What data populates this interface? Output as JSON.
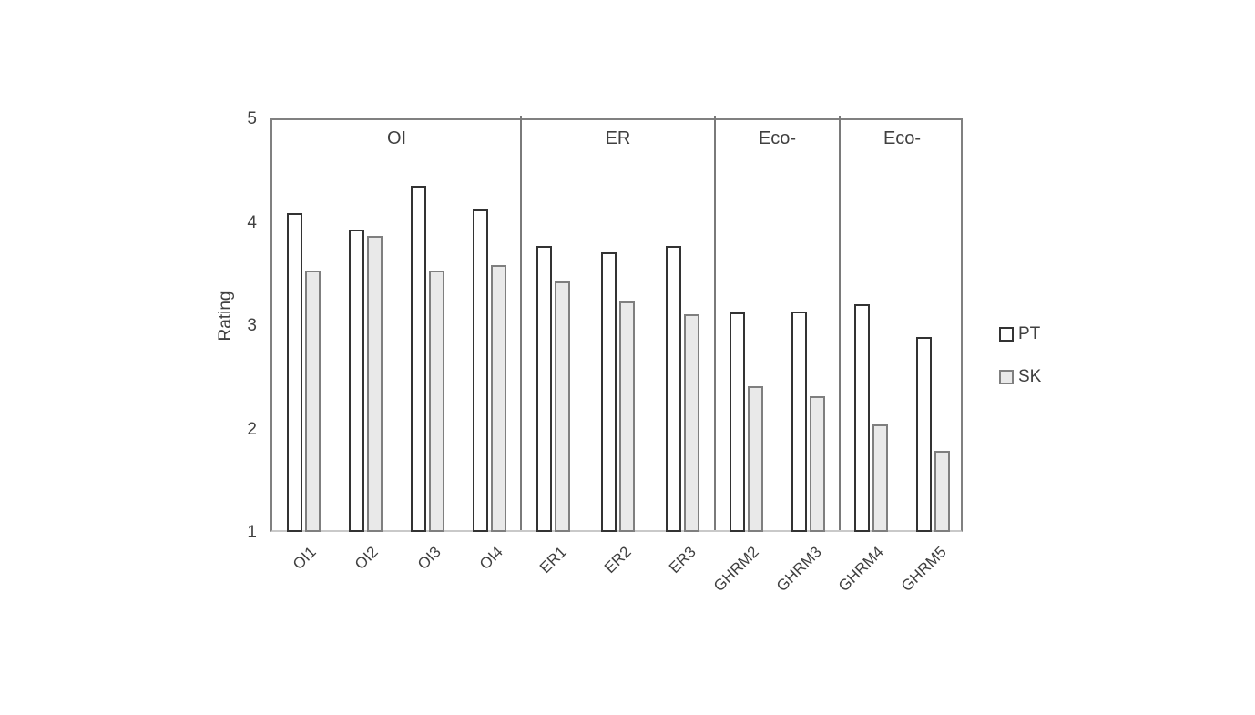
{
  "chart_data": {
    "type": "bar",
    "title": "",
    "xlabel": "",
    "ylabel": "Rating",
    "ylim": [
      1,
      5
    ],
    "yticks": [
      5,
      4,
      3,
      2,
      1
    ],
    "grid": false,
    "legend_position": "right",
    "groups": [
      {
        "label": "OI",
        "categories": [
          "OI1",
          "OI2",
          "OI3",
          "OI4"
        ]
      },
      {
        "label": "ER",
        "categories": [
          "ER1",
          "ER2",
          "ER3"
        ]
      },
      {
        "label": "Eco-",
        "categories": [
          "GHRM2",
          "GHRM3"
        ]
      },
      {
        "label": "Eco-",
        "categories": [
          "GHRM4",
          "GHRM5"
        ]
      }
    ],
    "categories": [
      "OI1",
      "OI2",
      "OI3",
      "OI4",
      "ER1",
      "ER2",
      "ER3",
      "GHRM2",
      "GHRM3",
      "GHRM4",
      "GHRM5"
    ],
    "series": [
      {
        "name": "PT",
        "fill": "#ffffff",
        "border": "#333333",
        "values": [
          4.1,
          3.94,
          4.37,
          4.14,
          3.78,
          3.72,
          3.78,
          3.14,
          3.15,
          3.22,
          2.9
        ]
      },
      {
        "name": "SK",
        "fill": "#e9e9e9",
        "border": "#7f7f7f",
        "values": [
          3.55,
          3.88,
          3.55,
          3.6,
          3.44,
          3.25,
          3.12,
          2.43,
          2.33,
          2.06,
          1.8
        ]
      }
    ],
    "colors": {
      "axis_border": "#808080",
      "bottom_axis": "#c9c9c9",
      "text": "#404040"
    }
  }
}
